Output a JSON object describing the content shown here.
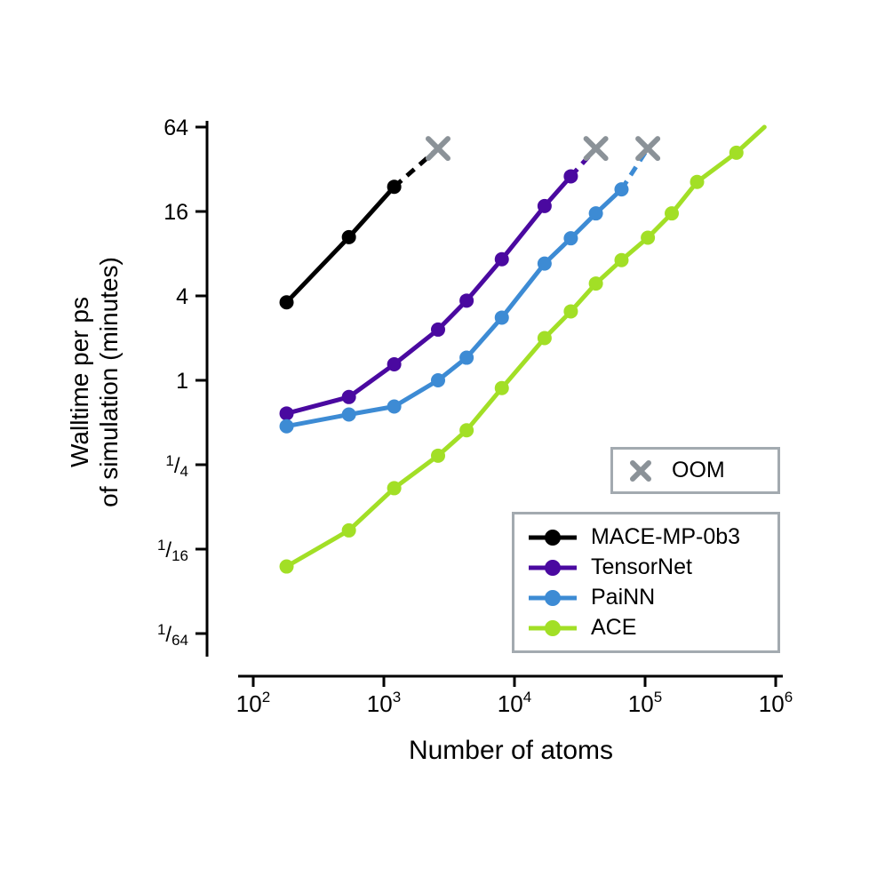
{
  "chart_data": {
    "type": "line",
    "title": "",
    "xlabel": "Number of atoms",
    "ylabel_lines": [
      "Walltime per ps",
      "of simulation (minutes)"
    ],
    "xscale": "log",
    "yscale": "log",
    "xlim": [
      100,
      1000000
    ],
    "ylim": [
      0.015625,
      64
    ],
    "x_ticks": [
      100,
      1000,
      10000,
      100000,
      1000000
    ],
    "y_ticks": [
      {
        "label": "64",
        "value": 64
      },
      {
        "label": "16",
        "value": 16
      },
      {
        "label": "4",
        "value": 4
      },
      {
        "label": "1",
        "value": 1
      },
      {
        "label": "1/4",
        "value": 0.25
      },
      {
        "label": "1/16",
        "value": 0.0625
      },
      {
        "label": "1/64",
        "value": 0.015625
      }
    ],
    "grid": false,
    "legend_position": "lower right",
    "oom_label": "OOM",
    "oom_color": "#8b9298",
    "legend_border_color": "#a3aab0",
    "series": [
      {
        "name": "MACE-MP-0b3",
        "color": "#000000",
        "points": [
          [
            180,
            3.6
          ],
          [
            540,
            10.5
          ],
          [
            1200,
            24
          ]
        ],
        "oom": [
          2600,
          45
        ]
      },
      {
        "name": "TensorNet",
        "color": "#4a09a0",
        "points": [
          [
            180,
            0.58
          ],
          [
            540,
            0.76
          ],
          [
            1200,
            1.3
          ],
          [
            2600,
            2.3
          ],
          [
            4300,
            3.7
          ],
          [
            8000,
            7.3
          ],
          [
            17000,
            17.5
          ],
          [
            27000,
            28.5
          ]
        ],
        "oom": [
          42000,
          45
        ]
      },
      {
        "name": "PaiNN",
        "color": "#3d8bd4",
        "points": [
          [
            180,
            0.47
          ],
          [
            540,
            0.57
          ],
          [
            1200,
            0.65
          ],
          [
            2600,
            1.0
          ],
          [
            4300,
            1.45
          ],
          [
            8000,
            2.8
          ],
          [
            17000,
            6.8
          ],
          [
            27000,
            10.3
          ],
          [
            42000,
            15.5
          ],
          [
            66000,
            23
          ]
        ],
        "oom": [
          105000,
          45
        ]
      },
      {
        "name": "ACE",
        "color": "#a2df26",
        "points": [
          [
            180,
            0.047
          ],
          [
            540,
            0.085
          ],
          [
            1200,
            0.17
          ],
          [
            2600,
            0.29
          ],
          [
            4300,
            0.44
          ],
          [
            8000,
            0.88
          ],
          [
            17000,
            2.0
          ],
          [
            27000,
            3.1
          ],
          [
            42000,
            4.9
          ],
          [
            66000,
            7.2
          ],
          [
            105000,
            10.4
          ],
          [
            160000,
            15.5
          ],
          [
            250000,
            26
          ],
          [
            500000,
            42
          ]
        ],
        "line_end": [
          820000,
          64
        ]
      }
    ]
  }
}
